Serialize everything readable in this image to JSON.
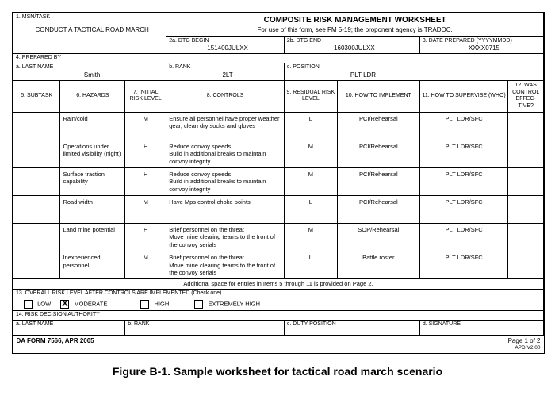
{
  "header": {
    "title": "COMPOSITE RISK MANAGEMENT WORKSHEET",
    "subtitle": "For use of this form, see FM 5-19; the proponent agency is TRADOC."
  },
  "block1": {
    "msn_label": "1. MSN/TASK",
    "msn_value": "CONDUCT A TACTICAL ROAD MARCH",
    "dtg_begin_label": "2a. DTG BEGIN",
    "dtg_begin_value": "151400JULXX",
    "dtg_end_label": "2b. DTG END",
    "dtg_end_value": "160300JULXX",
    "date_label": "3. DATE PREPARED (YYYYMMDD)",
    "date_value": "XXXX0715"
  },
  "block4": {
    "label": "4. PREPARED BY"
  },
  "prep": {
    "last_label": "a. LAST NAME",
    "last_value": "Smith",
    "rank_label": "b. RANK",
    "rank_value": "2LT",
    "pos_label": "c. POSITION",
    "pos_value": "PLT LDR"
  },
  "cols": {
    "c5": "5. SUBTASK",
    "c6": "6. HAZARDS",
    "c7": "7. INITIAL RISK LEVEL",
    "c8": "8. CONTROLS",
    "c9": "9. RESIDUAL RISK LEVEL",
    "c10": "10. HOW TO IMPLEMENT",
    "c11": "11. HOW TO SUPERVISE (WHO)",
    "c12": "12. WAS CONTROL EFFEC-TIVE?"
  },
  "rows": [
    {
      "subtask": "",
      "hazard": "Rain/cold",
      "init": "M",
      "controls": "Ensure all personnel have proper weather gear, clean dry socks and gloves",
      "resid": "L",
      "impl": "PCI/Rehearsal",
      "sup": "PLT LDR/SFC",
      "eff": ""
    },
    {
      "subtask": "",
      "hazard": "Operations under limited visibility (night)",
      "init": "H",
      "controls": "Reduce convoy speeds\nBuild in additional breaks to maintain convoy integrity",
      "resid": "M",
      "impl": "PCI/Rehearsal",
      "sup": "PLT LDR/SFC",
      "eff": ""
    },
    {
      "subtask": "",
      "hazard": "Surface traction capability",
      "init": "H",
      "controls": "Reduce convoy speeds\nBuild in additional breaks to maintain convoy integrity",
      "resid": "M",
      "impl": "PCI/Rehearsal",
      "sup": "PLT LDR/SFC",
      "eff": ""
    },
    {
      "subtask": "",
      "hazard": "Road width",
      "init": "M",
      "controls": "Have Mps control choke points",
      "resid": "L",
      "impl": "PCI/Rehearsal",
      "sup": "PLT LDR/SFC",
      "eff": ""
    },
    {
      "subtask": "",
      "hazard": "Land mine potential",
      "init": "H",
      "controls": "Brief personnel on the threat\nMove mine clearing teams to the front of the convoy serials",
      "resid": "M",
      "impl": "SOP/Rehearsal",
      "sup": "PLT LDR/SFC",
      "eff": ""
    },
    {
      "subtask": "",
      "hazard": "Inexperienced personnel",
      "init": "M",
      "controls": "Brief personnel on the threat\nMove mine clearing teams to the front of the convoy serials",
      "resid": "L",
      "impl": "Battle roster",
      "sup": "PLT LDR/SFC",
      "eff": ""
    }
  ],
  "note": "Additional space for entries in Items 5 through 11 is provided on Page 2.",
  "overall": {
    "label": "13. OVERALL RISK LEVEL AFTER CONTROLS ARE IMPLEMENTED (Check one)",
    "low": "LOW",
    "mod": "MODERATE",
    "high": "HIGH",
    "ext": "EXTREMELY HIGH",
    "checked": "mod"
  },
  "auth": {
    "label": "14. RISK DECISION AUTHORITY",
    "last": "a. LAST NAME",
    "rank": "b. RANK",
    "duty": "c. DUTY POSITION",
    "sig": "d. SIGNATURE"
  },
  "footer": {
    "form": "DA FORM 7566, APR 2005",
    "page": "Page 1 of 2",
    "ver": "APD V2.00"
  },
  "caption": "Figure B-1. Sample worksheet for tactical road march scenario"
}
